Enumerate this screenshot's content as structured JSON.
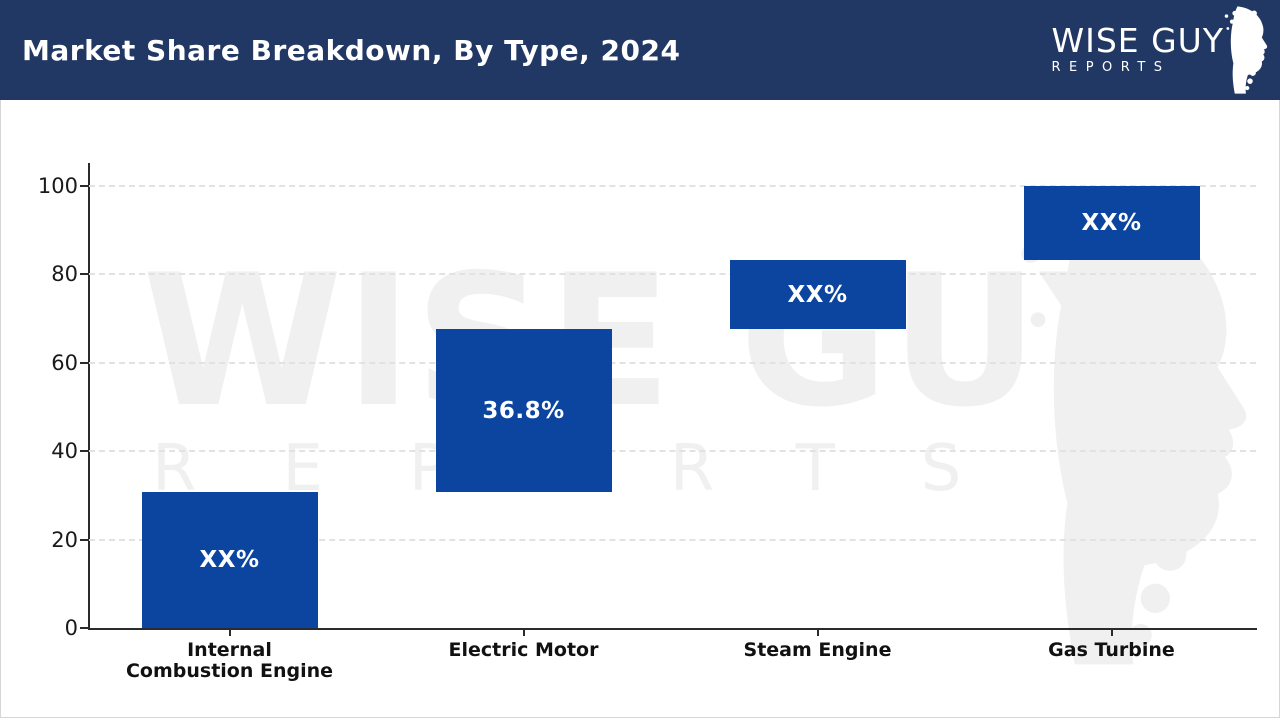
{
  "header": {
    "title": "Market Share Breakdown, By Type, 2024",
    "logo": {
      "name": "WISE GUY",
      "sub": "REPORTS"
    }
  },
  "watermark": {
    "line1": "WISE GUY",
    "line2": "REPORTS"
  },
  "chart_data": {
    "type": "bar",
    "variant": "waterfall",
    "title": "Market Share Breakdown, By Type, 2024",
    "categories": [
      "Internal\nCombustion Engine",
      "Electric Motor",
      "Steam Engine",
      "Gas Turbine"
    ],
    "segments": [
      {
        "category": "Internal Combustion Engine",
        "start": 0,
        "end": 30.8,
        "label": "XX%"
      },
      {
        "category": "Electric Motor",
        "start": 30.8,
        "end": 67.6,
        "label": "36.8%"
      },
      {
        "category": "Steam Engine",
        "start": 67.6,
        "end": 83.2,
        "label": "XX%"
      },
      {
        "category": "Gas Turbine",
        "start": 83.2,
        "end": 100,
        "label": "XX%"
      }
    ],
    "yticks": [
      0,
      20,
      40,
      60,
      80,
      100
    ],
    "ylim": [
      0,
      105
    ],
    "grid": "horizontal-dashed",
    "legend": "none",
    "colors": {
      "bar": "#0c459f",
      "header_bg": "#223864",
      "grid": "#e2e2e2",
      "axis": "#2b2b2b",
      "watermark": "#f0f0f1",
      "value_label": "#ffffff"
    }
  }
}
